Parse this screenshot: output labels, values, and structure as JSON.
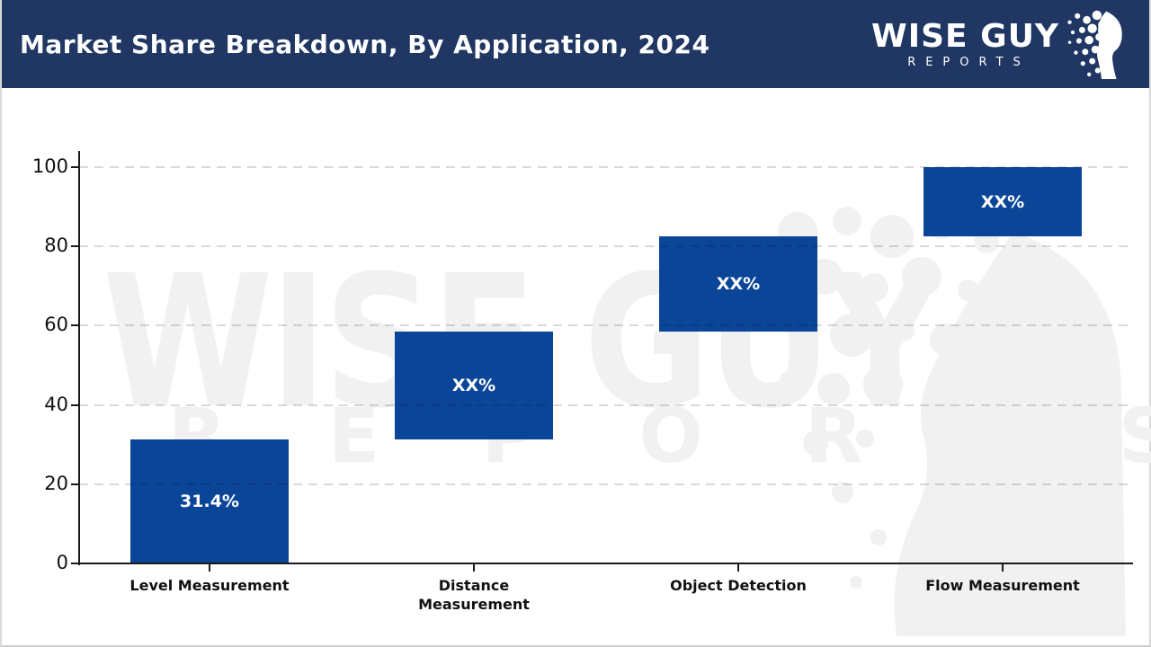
{
  "header": {
    "title": "Market Share Breakdown, By Application, 2024",
    "logo": {
      "line1": "WISE GUY",
      "line2": "REPORTS",
      "icon": "dotted-face-profile"
    }
  },
  "watermark": {
    "line1": "WISE GUY",
    "line2": "R E P O R T S",
    "icon": "dotted-head-watermark"
  },
  "chart_data": {
    "type": "bar",
    "subtype": "waterfall-floating-bars",
    "title": "Market Share Breakdown, By Application, 2024",
    "categories": [
      "Level Measurement",
      "Distance\nMeasurement",
      "Object Detection",
      "Flow Measurement"
    ],
    "segments": [
      [
        0,
        31.4
      ],
      [
        31.4,
        58.6
      ],
      [
        58.6,
        82.5
      ],
      [
        82.5,
        100
      ]
    ],
    "bar_labels": [
      "31.4%",
      "XX%",
      "XX%",
      "XX%"
    ],
    "xlabel": "",
    "ylabel": "",
    "ylim": [
      0,
      100
    ],
    "yticks": [
      0,
      20,
      40,
      60,
      80,
      100
    ],
    "grid": "horizontal-dashed",
    "legend": "none",
    "bar_color": "#0b4598",
    "bar_label_color": "#ffffff",
    "axis_color": "#1a1a1a",
    "grid_color": "#d8d8d8",
    "header_bg_color": "#203764",
    "watermark_color": "#f1f1f1"
  }
}
